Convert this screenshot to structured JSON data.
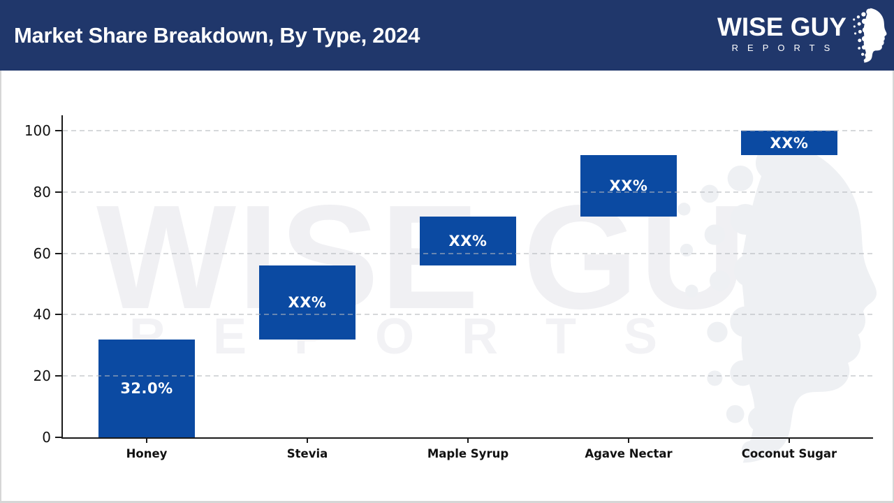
{
  "header": {
    "title": "Market Share Breakdown, By Type, 2024",
    "bg_color": "#20376b",
    "logo": {
      "line1": "WISE GUY",
      "line2": "REPORTS"
    }
  },
  "watermark": {
    "line1": "WISE GUY",
    "line2": "REPORTS"
  },
  "chart_data": {
    "type": "bar",
    "variant": "waterfall",
    "title": "Market Share Breakdown, By Type, 2024",
    "categories": [
      "Honey",
      "Stevia",
      "Maple Syrup",
      "Agave Nectar",
      "Coconut Sugar"
    ],
    "series": [
      {
        "name": "Market share (%)",
        "start": [
          0,
          32,
          56,
          72,
          92
        ],
        "end": [
          32,
          56,
          72,
          92,
          100
        ],
        "increment": [
          32,
          24,
          16,
          20,
          8
        ]
      }
    ],
    "bar_labels": [
      "32.0%",
      "XX%",
      "XX%",
      "XX%",
      "XX%"
    ],
    "bar_color": "#0b4aa2",
    "bar_label_color": "#ffffff",
    "xlabel": "",
    "ylabel": "",
    "ylim": [
      0,
      105
    ],
    "yticks": [
      0,
      20,
      40,
      60,
      80,
      100
    ],
    "grid": "horizontal-dashed-on-top",
    "legend": "none"
  }
}
